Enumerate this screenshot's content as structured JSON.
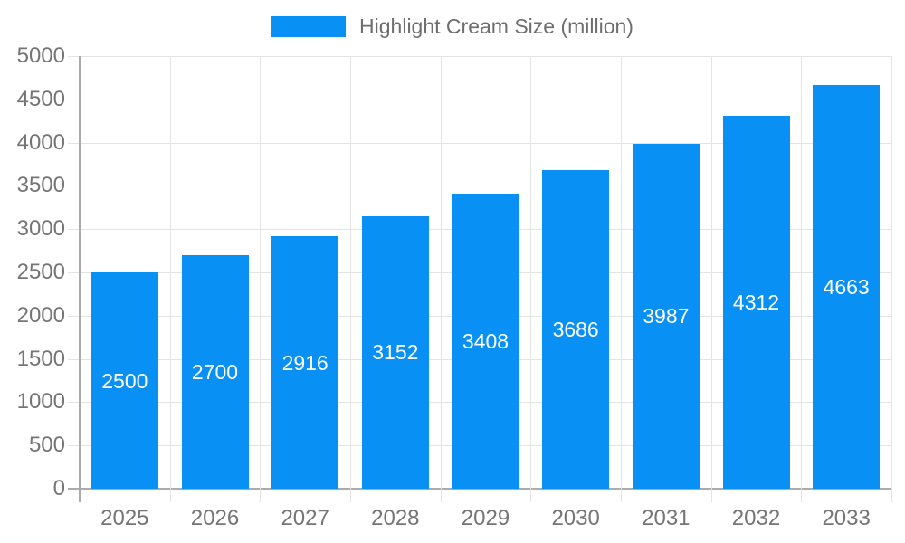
{
  "legend": {
    "label": "Highlight Cream Size (million)"
  },
  "chart_data": {
    "type": "bar",
    "title": "Highlight Cream Size (million)",
    "categories": [
      "2025",
      "2026",
      "2027",
      "2028",
      "2029",
      "2030",
      "2031",
      "2032",
      "2033"
    ],
    "values": [
      2500,
      2700,
      2916,
      3152,
      3408,
      3686,
      3987,
      4312,
      4663
    ],
    "xlabel": "",
    "ylabel": "",
    "ylim": [
      0,
      5000
    ],
    "ytick_step": 500,
    "grid": true,
    "legend_position": "top",
    "bar_labels_inside": true,
    "colors": {
      "bar": "#0890f5",
      "bar_label": "#ffffff",
      "grid": "#e4e4e4",
      "axis_line": "#ababab",
      "axis_text": "#757575",
      "legend_text": "#6e6e6e",
      "background": "#ffffff"
    }
  }
}
